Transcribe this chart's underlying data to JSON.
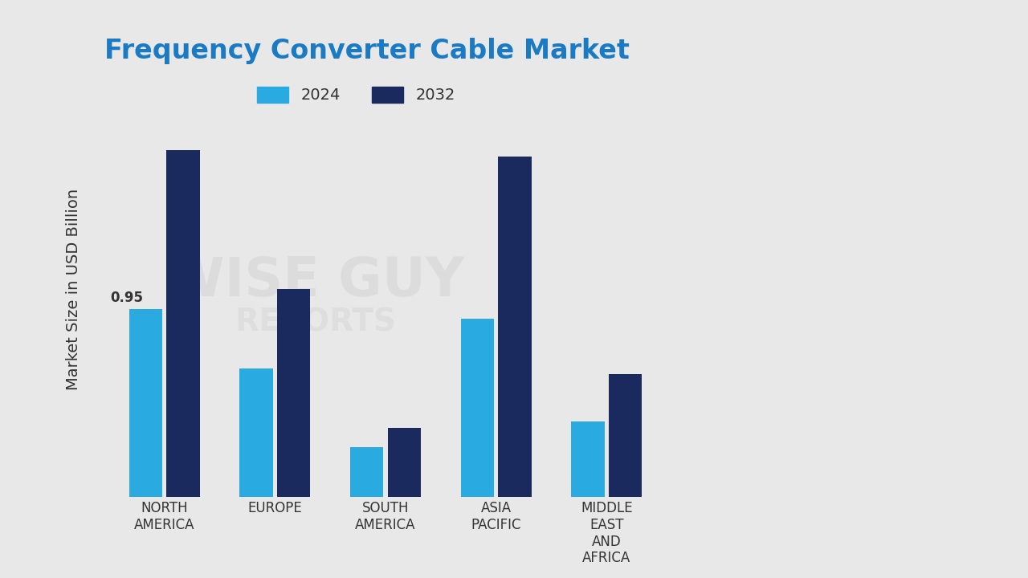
{
  "title": "Frequency Converter Cable Market",
  "ylabel": "Market Size in USD Billion",
  "categories": [
    "NORTH\nAMERICA",
    "EUROPE",
    "SOUTH\nAMERICA",
    "ASIA\nPACIFIC",
    "MIDDLE\nEAST\nAND\nAFRICA"
  ],
  "values_2024": [
    0.95,
    0.65,
    0.25,
    0.9,
    0.38
  ],
  "values_2032": [
    1.75,
    1.05,
    0.35,
    1.72,
    0.62
  ],
  "color_2024": "#29ABE2",
  "color_2032": "#1B2A5E",
  "label_2024": "2024",
  "label_2032": "2032",
  "bar_annotation_value": "0.95",
  "bar_annotation_index": 0,
  "background_color": "#E8E8E8",
  "title_color": "#1A7AC4",
  "axis_label_color": "#333333",
  "tick_label_color": "#333333",
  "bottom_bar_color": "#1B3A6B",
  "title_fontsize": 24,
  "ylabel_fontsize": 14,
  "legend_fontsize": 14,
  "tick_fontsize": 12,
  "annotation_fontsize": 12
}
